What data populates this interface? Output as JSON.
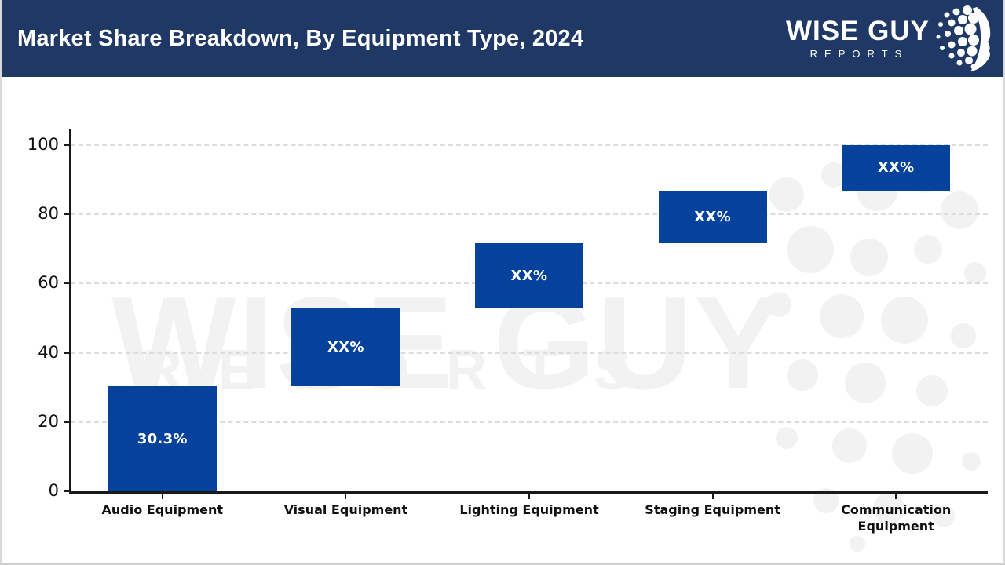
{
  "header": {
    "title": "Market Share Breakdown, By Equipment Type, 2024",
    "logo": {
      "line1": "WISE GUY",
      "line2": "REPORTS"
    }
  },
  "watermark": {
    "line1": "WISE GUY",
    "line2": "REPORTS"
  },
  "chart_data": {
    "type": "bar",
    "subtype": "waterfall",
    "title": "Market Share Breakdown, By Equipment Type, 2024",
    "xlabel": "",
    "ylabel": "",
    "ylim": [
      0,
      100
    ],
    "yticks": [
      0,
      20,
      40,
      60,
      80,
      100
    ],
    "grid": "dashed-horizontal",
    "legend": "none",
    "bar_color": "#05429c",
    "label_color": "#ffffff",
    "categories": [
      "Audio Equipment",
      "Visual Equipment",
      "Lighting Equipment",
      "Staging Equipment",
      "Communication\nEquipment"
    ],
    "segments": [
      {
        "category": "Audio Equipment",
        "start": 0,
        "end": 30.3,
        "label": "30.3%"
      },
      {
        "category": "Visual Equipment",
        "start": 30.3,
        "end": 52.8,
        "label": "XX%"
      },
      {
        "category": "Lighting Equipment",
        "start": 52.8,
        "end": 71.7,
        "label": "XX%"
      },
      {
        "category": "Staging Equipment",
        "start": 71.7,
        "end": 86.9,
        "label": "XX%"
      },
      {
        "category": "Communication\nEquipment",
        "start": 86.9,
        "end": 100,
        "label": "XX%"
      }
    ]
  }
}
